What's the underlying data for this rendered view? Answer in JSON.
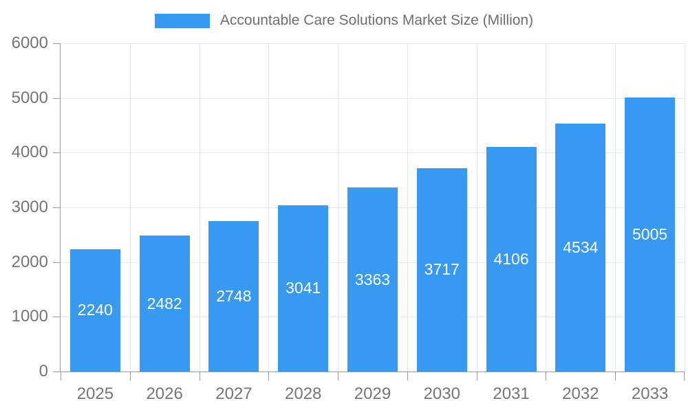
{
  "legend": {
    "label": "Accountable Care Solutions Market Size (Million)"
  },
  "chart_data": {
    "type": "bar",
    "title": "Accountable Care Solutions Market Size (Million)",
    "categories": [
      "2025",
      "2026",
      "2027",
      "2028",
      "2029",
      "2030",
      "2031",
      "2032",
      "2033"
    ],
    "values": [
      2240,
      2482,
      2748,
      3041,
      3363,
      3717,
      4106,
      4534,
      5005
    ],
    "xlabel": "",
    "ylabel": "",
    "ylim": [
      0,
      6000
    ],
    "ytick_step": 1000,
    "yticks": [
      0,
      1000,
      2000,
      3000,
      4000,
      5000,
      6000
    ],
    "grid": true,
    "legend_position": "top",
    "value_labels": "inside-white"
  },
  "colors": {
    "bar": "#3899f0",
    "grid": "#e6e6e6",
    "axis": "#999999",
    "tick": "#999999",
    "axis_label": "#757575",
    "legend_text": "#6e6e6e",
    "value_label": "#ffffff",
    "background": "#ffffff"
  }
}
